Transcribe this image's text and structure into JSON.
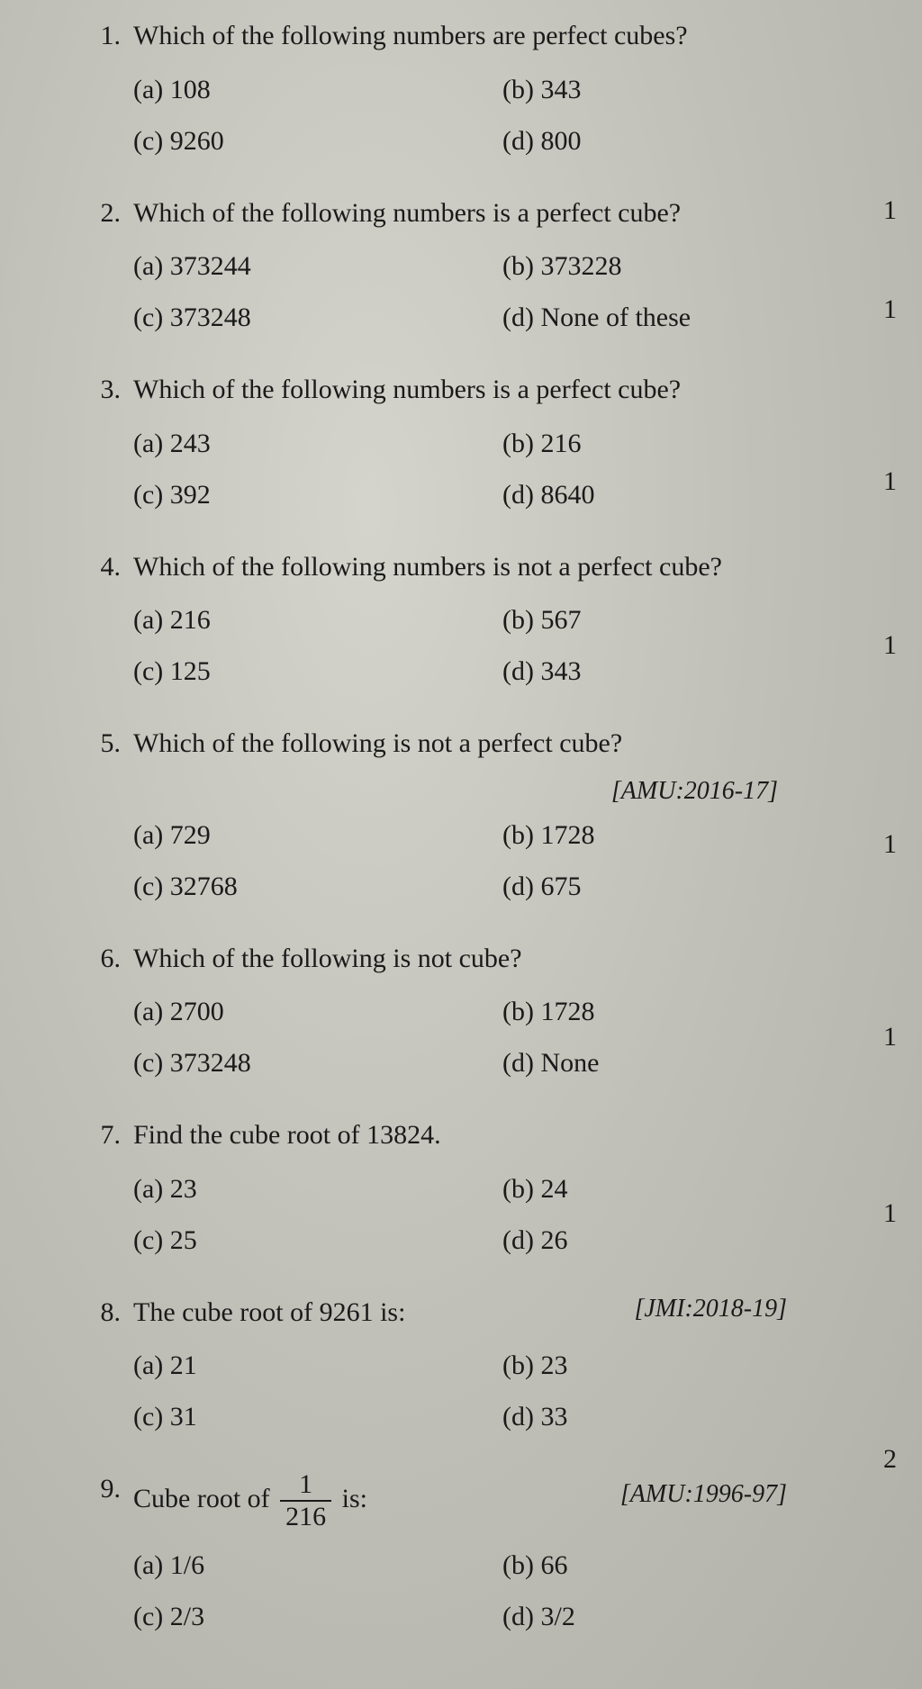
{
  "questions": [
    {
      "num": "1.",
      "text": "Which of the following numbers are perfect cubes?",
      "opts": {
        "a": "108",
        "b": "343",
        "c": "9260",
        "d": "800"
      },
      "edge": ""
    },
    {
      "num": "2.",
      "text": "Which of the following numbers is a perfect cube?",
      "opts": {
        "a": "373244",
        "b": "373228",
        "c": "373248",
        "d": "None of these"
      },
      "edge": "1",
      "edge2": "1"
    },
    {
      "num": "3.",
      "text": "Which of the following numbers is a perfect cube?",
      "opts": {
        "a": "243",
        "b": "216",
        "c": "392",
        "d": "8640"
      },
      "edge": "1"
    },
    {
      "num": "4.",
      "text": "Which of the following numbers is not a perfect cube?",
      "opts": {
        "a": "216",
        "b": "567",
        "c": "125",
        "d": "343"
      },
      "edge": "1"
    },
    {
      "num": "5.",
      "text": "Which of the following is not a perfect cube?",
      "source": "[AMU:2016-17]",
      "opts": {
        "a": "729",
        "b": "1728",
        "c": "32768",
        "d": "675"
      },
      "edge": "1"
    },
    {
      "num": "6.",
      "text": "Which of the following is not cube?",
      "opts": {
        "a": "2700",
        "b": "1728",
        "c": "373248",
        "d": "None"
      },
      "edge": "1"
    },
    {
      "num": "7.",
      "text": "Find the cube root of 13824.",
      "opts": {
        "a": "23",
        "b": "24",
        "c": "25",
        "d": "26"
      },
      "edge": "1"
    },
    {
      "num": "8.",
      "text": "The cube root of 9261 is:",
      "source_inline": "[JMI:2018-19]",
      "opts": {
        "a": "21",
        "b": "23",
        "c": "31",
        "d": "33"
      },
      "edge": ""
    },
    {
      "num": "9.",
      "text_html": "Cube root of [[FRAC:1:216]] is:",
      "source_inline": "[AMU:1996-97]",
      "opts": {
        "a": "1/6",
        "b": "66",
        "c": "2/3",
        "d": "3/2"
      },
      "edge": "2"
    }
  ],
  "labels": {
    "a": "(a)",
    "b": "(b)",
    "c": "(c)",
    "d": "(d)"
  },
  "colors": {
    "text": "#1a1a1a",
    "bg_light": "#d4d4cc",
    "bg_dark": "#b0b0a8"
  }
}
